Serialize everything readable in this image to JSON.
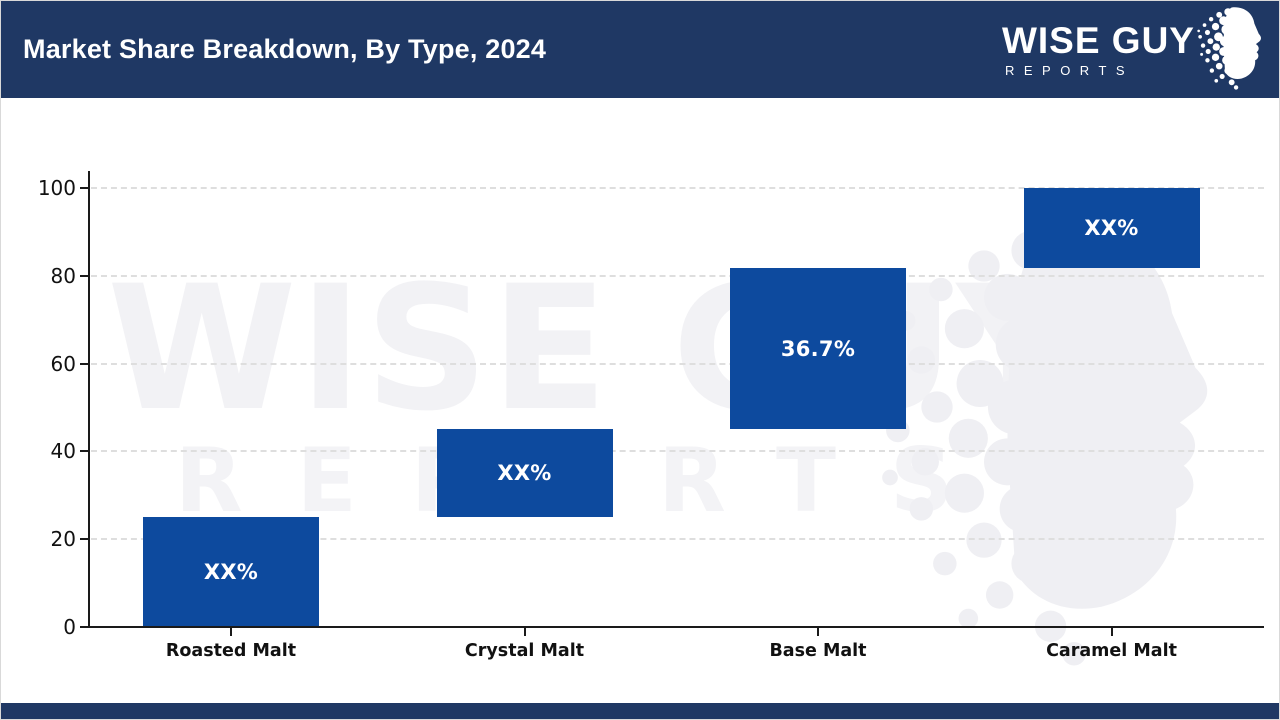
{
  "header": {
    "title": "Market Share Breakdown, By Type, 2024",
    "logo": {
      "line1": "WISE GUY",
      "line2": "REPORTS"
    }
  },
  "watermark": {
    "line1": "WISE GUY",
    "line2": "REPORTS"
  },
  "colors": {
    "header_bg": "#1f3864",
    "footer_bg": "#1f3864",
    "bar": "#0d4a9e",
    "bar_label": "#ffffff",
    "grid": "#dedede",
    "axis": "#1a1a1a",
    "tick_text": "#111111",
    "watermark": "#f2f2f5"
  },
  "chart_data": {
    "type": "bar",
    "variant": "floating-waterfall",
    "title": "Market Share Breakdown, By Type, 2024",
    "categories": [
      "Roasted Malt",
      "Crystal Malt",
      "Base Malt",
      "Caramel Malt"
    ],
    "segments": [
      {
        "category": "Roasted Malt",
        "start": 0,
        "end": 25,
        "label": "XX%"
      },
      {
        "category": "Crystal Malt",
        "start": 25,
        "end": 45,
        "label": "XX%"
      },
      {
        "category": "Base Malt",
        "start": 45,
        "end": 81.7,
        "label": "36.7%"
      },
      {
        "category": "Caramel Malt",
        "start": 81.7,
        "end": 100,
        "label": "XX%"
      }
    ],
    "xlabel": "",
    "ylabel": "",
    "ylim": [
      0,
      100
    ],
    "yticks": [
      0,
      20,
      40,
      60,
      80,
      100
    ],
    "grid": "horizontal-dashed",
    "legend": "none"
  }
}
